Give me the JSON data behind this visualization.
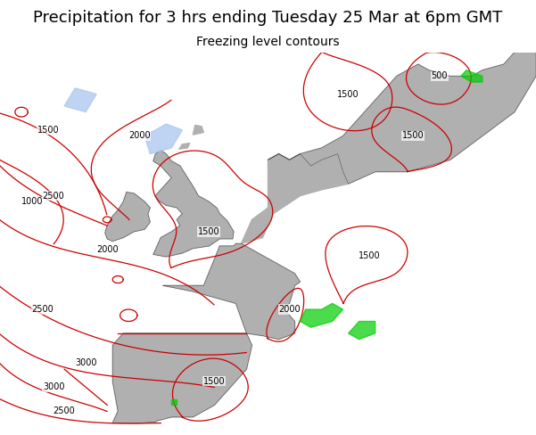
{
  "title": "Precipitation for 3 hrs ending Tuesday 25 Mar at 6pm GMT",
  "subtitle": "Freezing level contours",
  "title_fontsize": 13,
  "subtitle_fontsize": 10,
  "background_color": "#ffffff",
  "map_ocean_color": "#d0d8f0",
  "map_land_color": "#a0a0a0",
  "contour_color": "#cc0000",
  "contour_label_color": "#000000",
  "border_color": "#000000",
  "fig_width": 6.01,
  "fig_height": 4.88,
  "dpi": 100
}
